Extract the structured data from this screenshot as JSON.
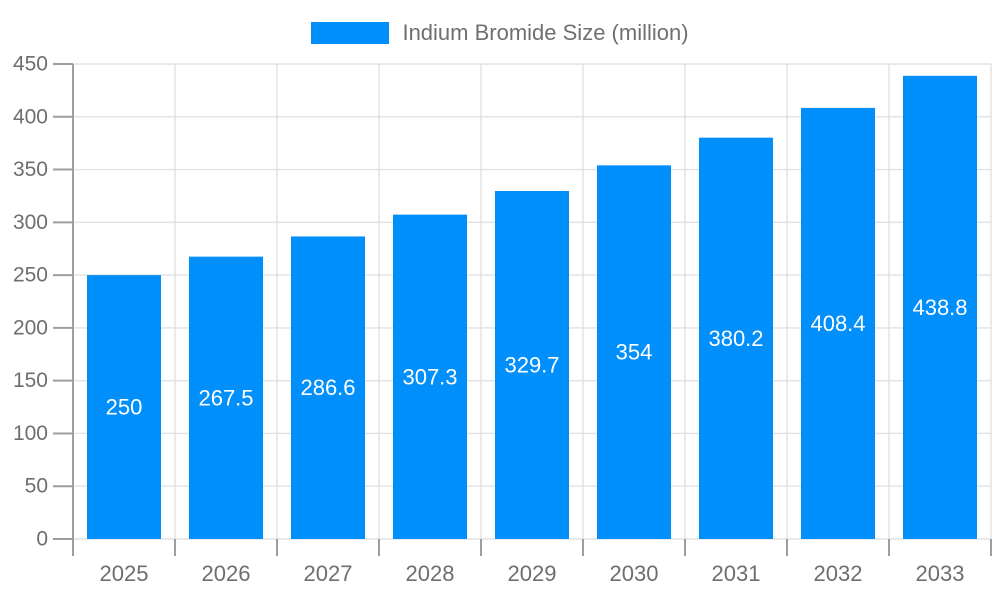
{
  "legend": {
    "label": "Indium Bromide Size (million)",
    "swatch_color": "#008FFB"
  },
  "chart_data": {
    "type": "bar",
    "title": "",
    "xlabel": "",
    "ylabel": "",
    "categories": [
      "2025",
      "2026",
      "2027",
      "2028",
      "2029",
      "2030",
      "2031",
      "2032",
      "2033"
    ],
    "series": [
      {
        "name": "Indium Bromide Size (million)",
        "values": [
          250,
          267.5,
          286.6,
          307.3,
          329.7,
          354,
          380.2,
          408.4,
          438.8
        ]
      }
    ],
    "data_labels": [
      "250",
      "267.5",
      "286.6",
      "307.3",
      "329.7",
      "354",
      "380.2",
      "408.4",
      "438.8"
    ],
    "ylim": [
      0,
      450
    ],
    "ytick_step": 50,
    "yticks": [
      0,
      50,
      100,
      150,
      200,
      250,
      300,
      350,
      400,
      450
    ],
    "grid": true,
    "legend_position": "top",
    "bar_color": "#008FFB",
    "data_label_color": "#ffffff",
    "axis_label_color": "#6e6e6e",
    "grid_color": "#e2e2e2",
    "axis_line_color": "#9e9e9e"
  }
}
